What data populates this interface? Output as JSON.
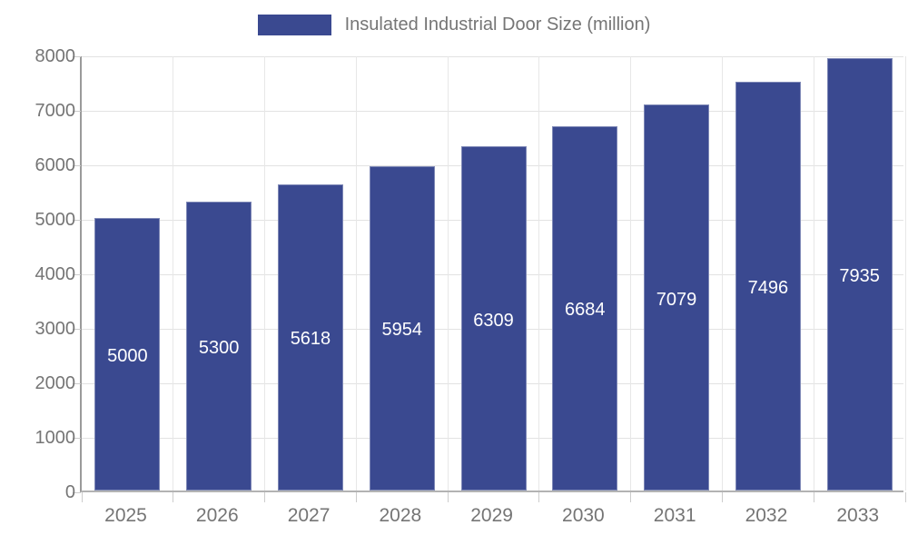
{
  "legend": {
    "label": "Insulated Industrial Door Size (million)"
  },
  "chart_data": {
    "type": "bar",
    "title": "Insulated Industrial Door Size (million)",
    "categories": [
      "2025",
      "2026",
      "2027",
      "2028",
      "2029",
      "2030",
      "2031",
      "2032",
      "2033"
    ],
    "series": [
      {
        "name": "Insulated Industrial Door Size (million)",
        "values": [
          5000,
          5300,
          5618,
          5954,
          6309,
          6684,
          7079,
          7496,
          7935
        ]
      }
    ],
    "xlabel": "",
    "ylabel": "",
    "ylim": [
      0,
      8000
    ],
    "ytick_step": 1000,
    "ytick_labels": [
      "0",
      "1000",
      "2000",
      "3000",
      "4000",
      "5000",
      "6000",
      "7000",
      "8000"
    ],
    "grid": true,
    "grid_direction": "both",
    "legend_position": "top-center",
    "value_labels": "centered-inside-bars",
    "colors": {
      "bar": "#3A4990",
      "grid_h": "#E2E2E2",
      "grid_v": "#E7E7E7",
      "axis_y": "#9A9A9A",
      "axis_x": "#B3B3B3",
      "tick": "#CCCCCC",
      "tick_text": "#757575",
      "legend_text": "#757575",
      "value_label": "#FFFFFF",
      "background": "#FFFFFF"
    }
  }
}
